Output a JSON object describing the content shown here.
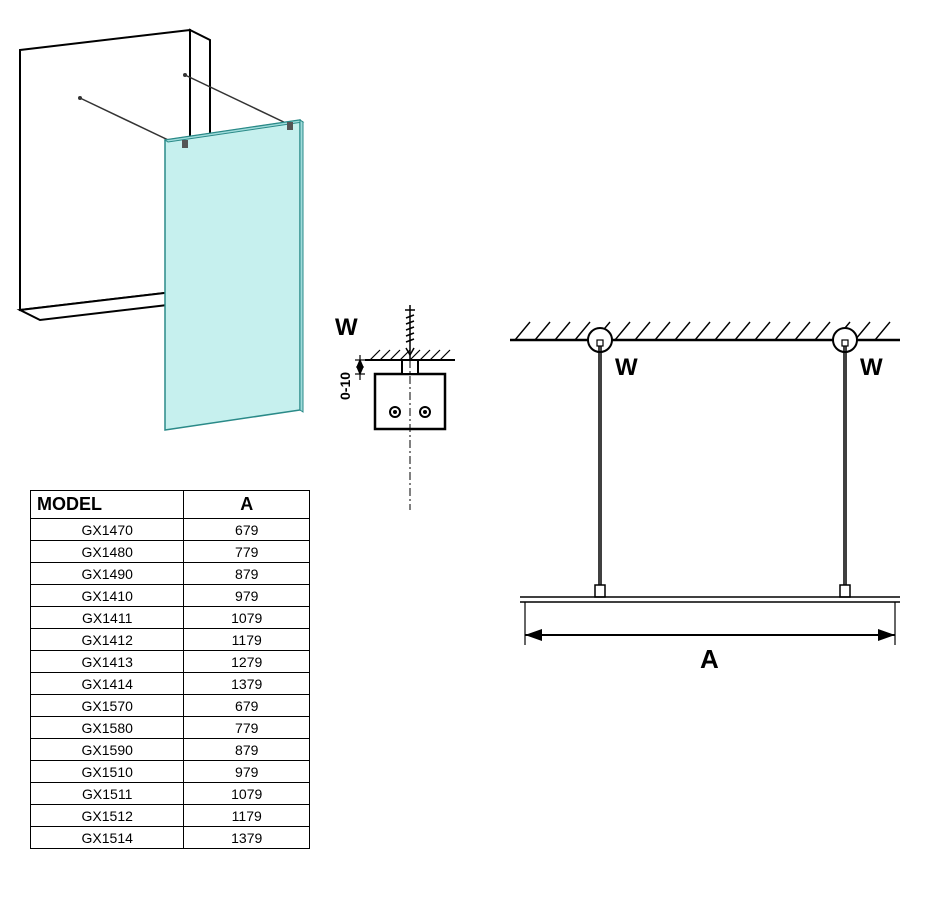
{
  "iso": {
    "wall_color": "#ffffff",
    "wall_stroke": "#000000",
    "glass_fill": "#c6f0ee",
    "glass_stroke": "#2a7a78",
    "rod_stroke": "#444444"
  },
  "detail": {
    "label_w": "W",
    "dim_label": "0-10",
    "bracket_fill": "#ffffff",
    "bracket_stroke": "#000000",
    "screw_stroke": "#000000"
  },
  "topview": {
    "label_w_left": "W",
    "label_w_right": "W",
    "label_a": "A",
    "hatch_stroke": "#000000"
  },
  "table": {
    "headers": [
      "MODEL",
      "A"
    ],
    "rows": [
      [
        "GX1470",
        "679"
      ],
      [
        "GX1480",
        "779"
      ],
      [
        "GX1490",
        "879"
      ],
      [
        "GX1410",
        "979"
      ],
      [
        "GX1411",
        "1079"
      ],
      [
        "GX1412",
        "1179"
      ],
      [
        "GX1413",
        "1279"
      ],
      [
        "GX1414",
        "1379"
      ],
      [
        "GX1570",
        "679"
      ],
      [
        "GX1580",
        "779"
      ],
      [
        "GX1590",
        "879"
      ],
      [
        "GX1510",
        "979"
      ],
      [
        "GX1511",
        "1079"
      ],
      [
        "GX1512",
        "1179"
      ],
      [
        "GX1514",
        "1379"
      ]
    ]
  }
}
